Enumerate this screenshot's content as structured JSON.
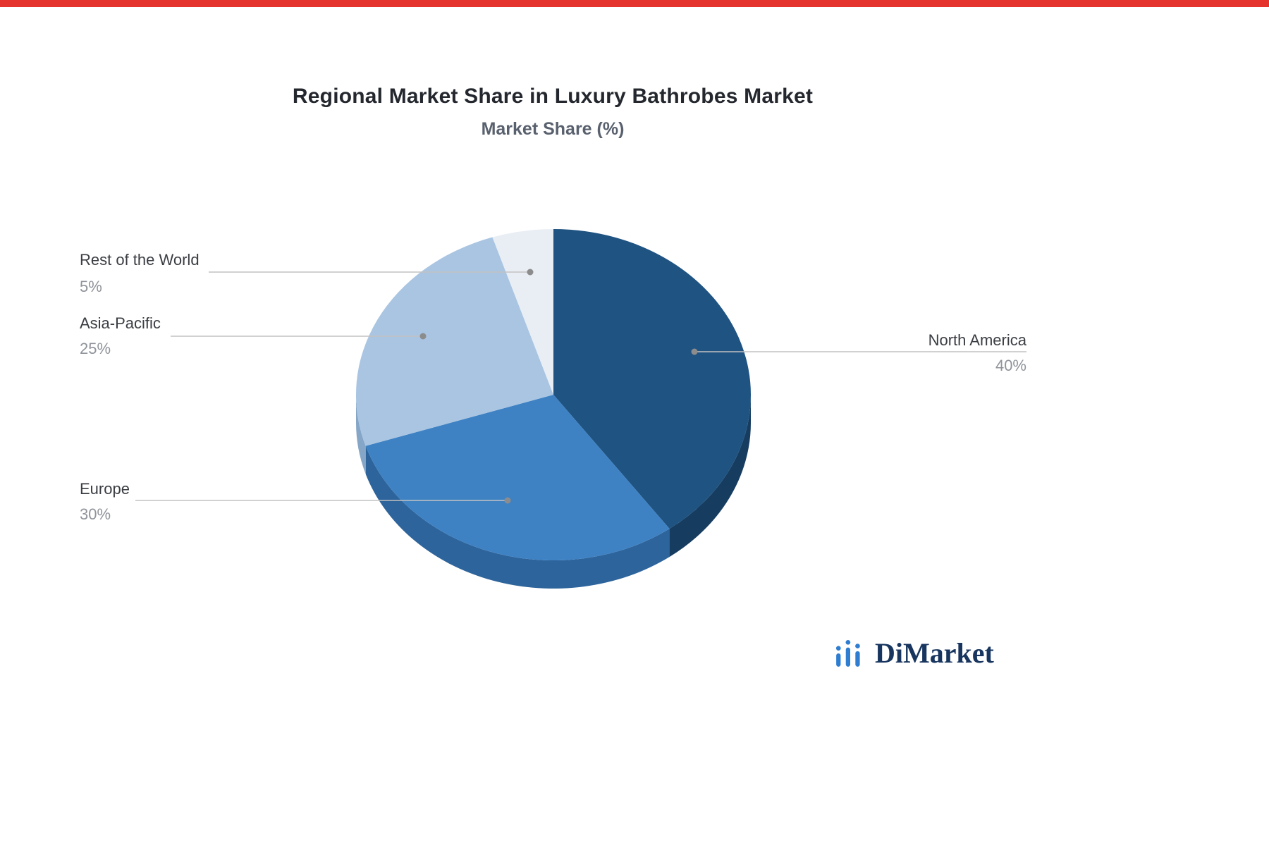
{
  "title": "Regional Market Share in Luxury Bathrobes Market",
  "subtitle": "Market Share (%)",
  "accent_red": "#e5332d",
  "brand": {
    "name": "DiMarket",
    "icon": "bar-chart-icon",
    "icon_color": "#2e7dd1",
    "text_color": "#17355e"
  },
  "chart_data": {
    "type": "pie",
    "title": "Regional Market Share in Luxury Bathrobes Market",
    "subtitle": "Market Share (%)",
    "unit": "%",
    "style": "3d-pie",
    "direction": "clockwise",
    "start_angle_deg": 0,
    "legend_position": "none",
    "slices": [
      {
        "label": "North America",
        "value": 40,
        "display": "40%",
        "color": "#1f5382",
        "side_color": "#163c60"
      },
      {
        "label": "Europe",
        "value": 30,
        "display": "30%",
        "color": "#3e82c4",
        "side_color": "#2d649b"
      },
      {
        "label": "Asia-Pacific",
        "value": 25,
        "display": "25%",
        "color": "#a9c5e2",
        "side_color": "#86a6c8"
      },
      {
        "label": "Rest of the World",
        "value": 5,
        "display": "5%",
        "color": "#e9eef5",
        "side_color": "#c3ccd8"
      }
    ]
  }
}
